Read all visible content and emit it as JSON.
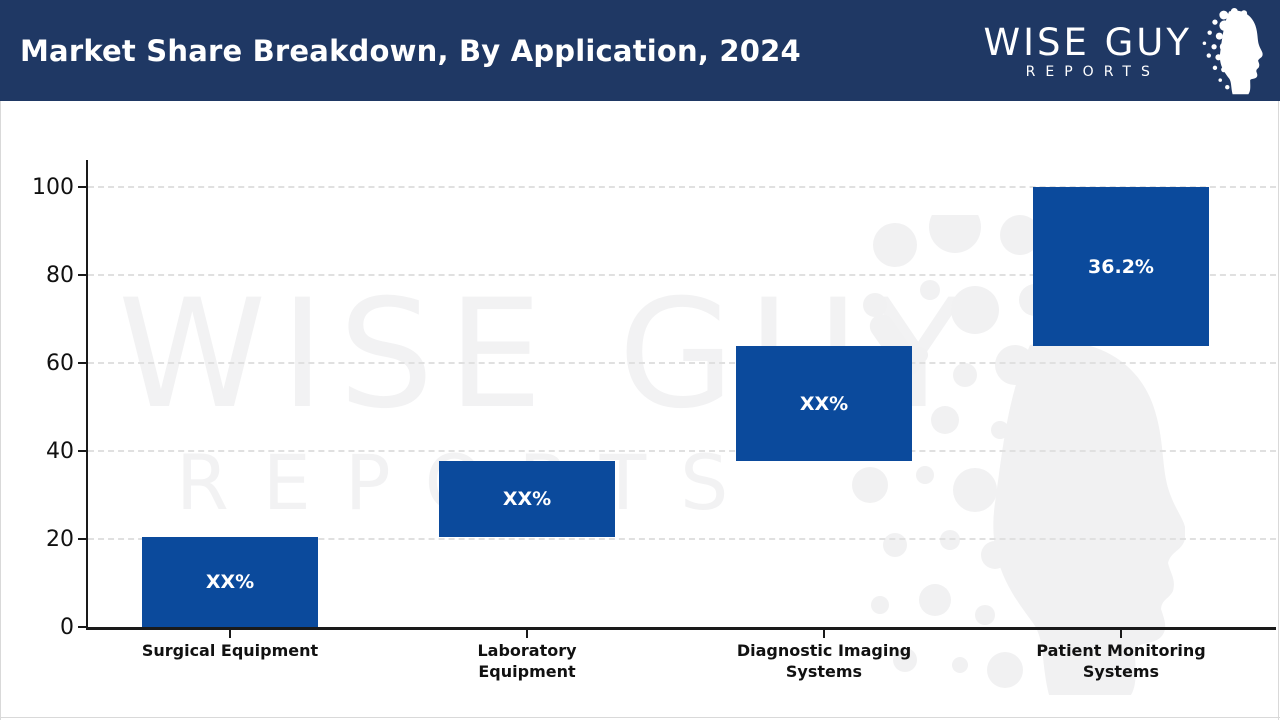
{
  "header": {
    "title": "Market Share Breakdown, By Application, 2024",
    "logo": {
      "line1": "WISE GUY",
      "line2": "REPORTS",
      "icon": "dotted-head-profile-icon"
    }
  },
  "watermark": {
    "line1": "WISE GUY",
    "line2": "REPORTS",
    "icon": "dotted-head-profile-watermark"
  },
  "colors": {
    "header_bg": "#1f3864",
    "bar": "#0b4a9c",
    "grid": "#e0e0e0",
    "axis": "#1a1a1a",
    "bar_label": "#ffffff",
    "watermark": "#f2f2f3"
  },
  "chart_data": {
    "type": "bar",
    "subtype": "waterfall",
    "title": "Market Share Breakdown, By Application, 2024",
    "categories": [
      "Surgical Equipment",
      "Laboratory Equipment",
      "Diagnostic Imaging Systems",
      "Patient Monitoring Systems"
    ],
    "category_lines": [
      [
        "Surgical Equipment"
      ],
      [
        "Laboratory",
        "Equipment"
      ],
      [
        "Diagnostic Imaging",
        "Systems"
      ],
      [
        "Patient Monitoring",
        "Systems"
      ]
    ],
    "segments": [
      {
        "start": 0,
        "end": 20.5,
        "label": "XX%"
      },
      {
        "start": 20.5,
        "end": 37.7,
        "label": "XX%"
      },
      {
        "start": 37.7,
        "end": 63.8,
        "label": "XX%"
      },
      {
        "start": 63.8,
        "end": 100,
        "label": "36.2%"
      }
    ],
    "xlabel": "",
    "ylabel": "",
    "ylim": [
      0,
      100
    ],
    "yticks": [
      0,
      20,
      40,
      60,
      80,
      100
    ],
    "grid": "horizontal-dashed",
    "legend": "none"
  }
}
